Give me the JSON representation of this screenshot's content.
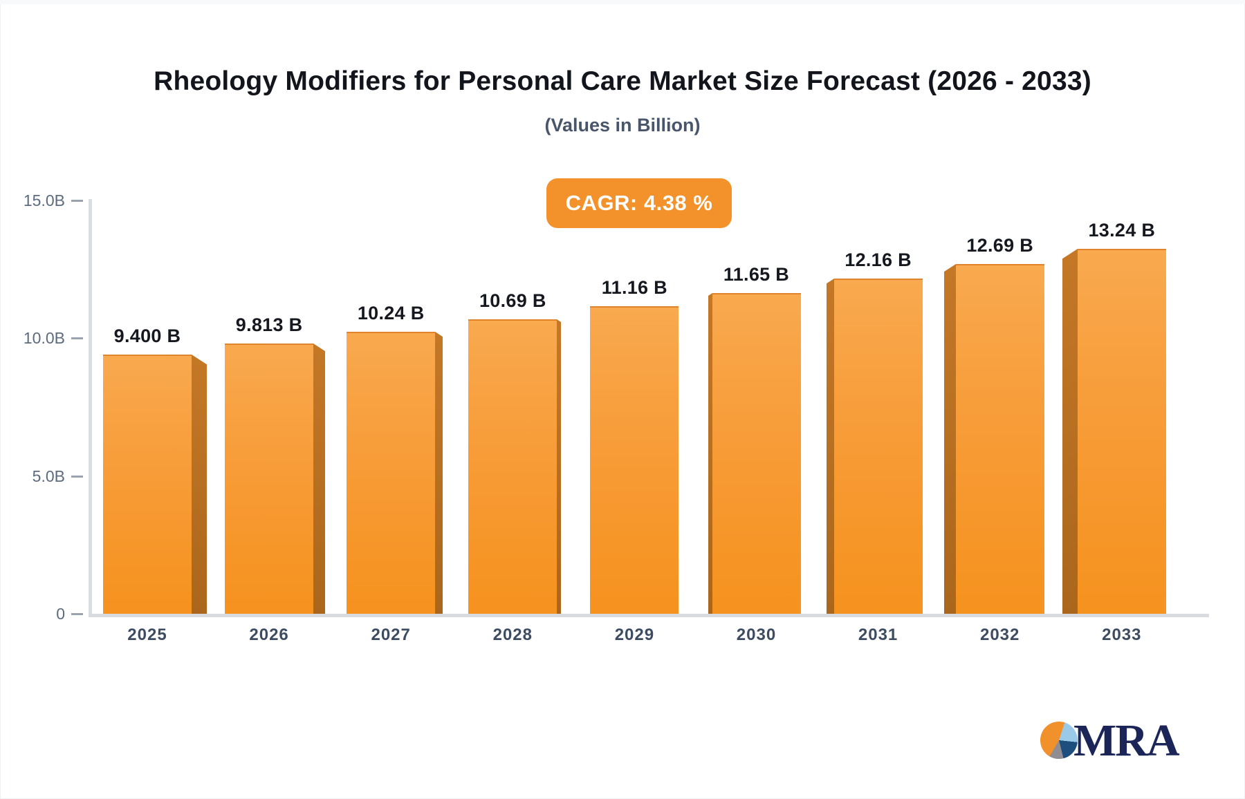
{
  "header": {
    "title": "Rheology Modifiers for Personal Care Market Size Forecast (2026 - 2033)",
    "subtitle": "(Values in Billion)"
  },
  "badge": {
    "label": "CAGR: 4.38 %"
  },
  "chart_data": {
    "type": "bar",
    "title": "Rheology Modifiers for Personal Care Market Size Forecast (2026 - 2033)",
    "subtitle": "(Values in Billion)",
    "categories": [
      "2025",
      "2026",
      "2027",
      "2028",
      "2029",
      "2030",
      "2031",
      "2032",
      "2033"
    ],
    "values": [
      9.4,
      9.813,
      10.24,
      10.69,
      11.16,
      11.65,
      12.16,
      12.69,
      13.24
    ],
    "bar_labels": [
      "9.400 B",
      "9.813 B",
      "10.24 B",
      "10.69 B",
      "11.16 B",
      "11.65 B",
      "12.16 B",
      "12.69 B",
      "13.24 B"
    ],
    "xlabel": "",
    "ylabel": "",
    "ylim": [
      0,
      15
    ],
    "y_ticks": [
      {
        "label": "15.0B",
        "value": 15
      },
      {
        "label": "10.0B",
        "value": 10
      },
      {
        "label": "5.0B",
        "value": 5
      },
      {
        "label": "0",
        "value": 0
      }
    ],
    "grid": false,
    "legend": "none",
    "cagr": "4.38 %",
    "colors": {
      "bar_top": "#f9a94f",
      "bar_bottom": "#f6921e",
      "bar_side": "#b9701f",
      "bar_top_edge": "#e0832a",
      "badge_bg": "#f3922b",
      "axis": "#dadde2",
      "tick_text": "#5c6b7e",
      "year_text": "#3d4c62",
      "value_text": "#15181e",
      "title_text": "#12151c",
      "subtitle_text": "#48556a"
    }
  },
  "logo": {
    "text": "MRA",
    "icon": "pie-chart-icon",
    "pie_colors": [
      "#f0912b",
      "#9bcae8",
      "#1d4e7e",
      "#8f8d92"
    ]
  }
}
